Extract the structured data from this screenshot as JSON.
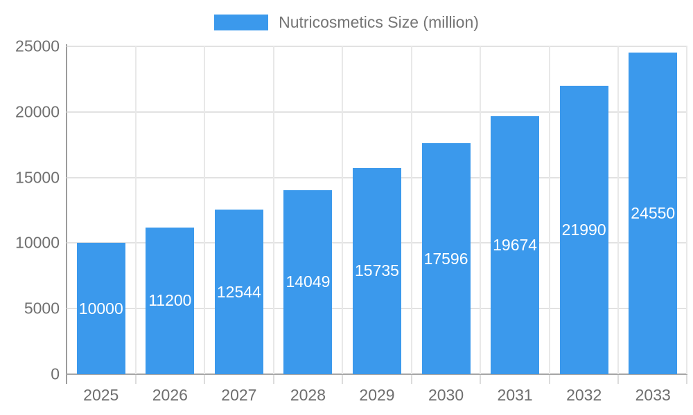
{
  "legend": {
    "label": "Nutricosmetics Size (million)"
  },
  "colors": {
    "bar": "#3b99ec",
    "legend_text": "#757575",
    "axis_text": "#6f6f6f",
    "grid_horizontal": "#e2e2e2",
    "grid_vertical": "#e8e8e8",
    "axis_line": "#9c9c9c",
    "data_label": "#ffffff",
    "background": "#ffffff"
  },
  "chart_data": {
    "type": "bar",
    "title": "",
    "categories": [
      "2025",
      "2026",
      "2027",
      "2028",
      "2029",
      "2030",
      "2031",
      "2032",
      "2033"
    ],
    "series": [
      {
        "name": "Nutricosmetics Size (million)",
        "color": "#3b99ec",
        "values": [
          10000,
          11200,
          12544,
          14049,
          15735,
          17596,
          19674,
          21990,
          24550
        ]
      }
    ],
    "xlabel": "",
    "ylabel": "",
    "ylim": [
      0,
      25000
    ],
    "ytick_interval": 5000,
    "ytick_labels": [
      "0",
      "5000",
      "10000",
      "15000",
      "20000",
      "25000"
    ],
    "grid": true,
    "legend_position": "top-center",
    "data_labels_position": "inside-center"
  }
}
